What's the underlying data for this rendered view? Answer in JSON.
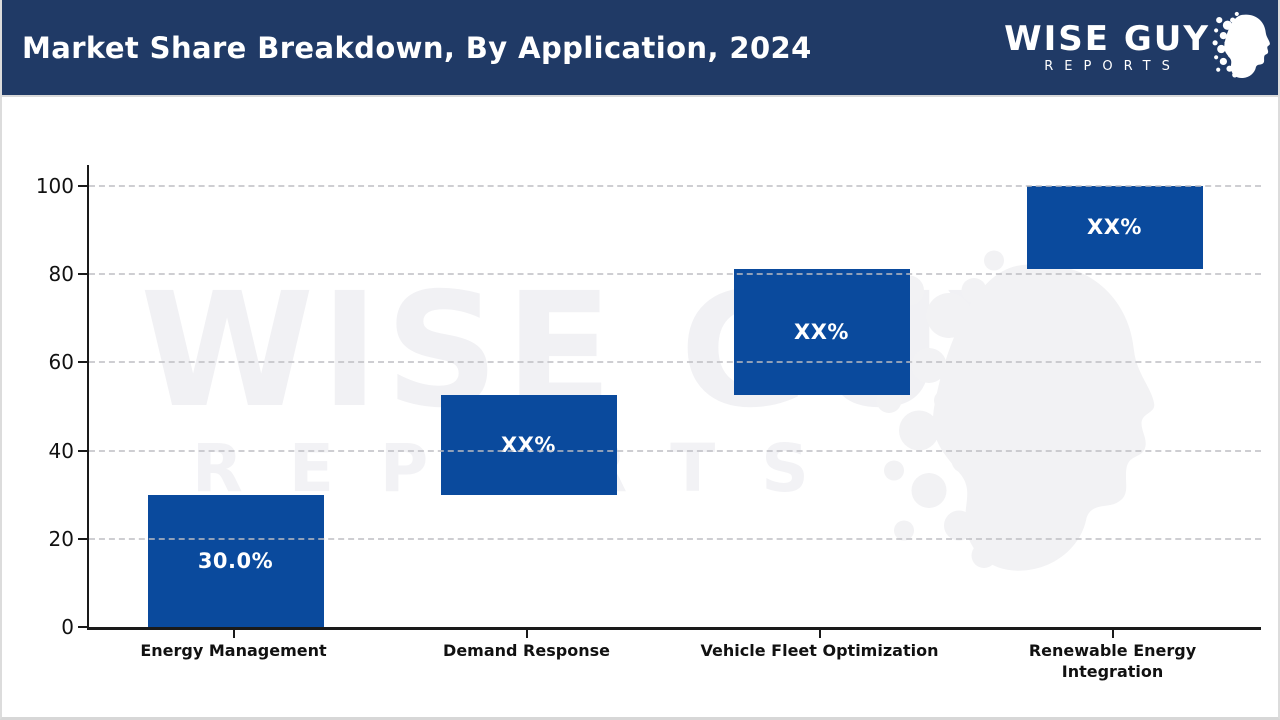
{
  "header": {
    "title": "Market Share Breakdown, By Application, 2024",
    "bg_color": "#203a66",
    "logo": {
      "line1": "WISE GUY",
      "line2": "REPORTS"
    }
  },
  "watermark": {
    "line1": "WISE GUY",
    "line2": "REPORTS"
  },
  "chart_data": {
    "type": "bar",
    "subtype": "waterfall",
    "title": "Market Share Breakdown, By Application, 2024",
    "xlabel": "",
    "ylabel": "",
    "ylim": [
      0,
      105
    ],
    "y_ticks": [
      0,
      20,
      40,
      60,
      80,
      100
    ],
    "grid": "horizontal-dashed",
    "legend": "none",
    "bar_color": "#0a4a9d",
    "categories": [
      "Energy Management",
      "Demand Response",
      "Vehicle Fleet Optimization",
      "Renewable Energy Integration"
    ],
    "segments": [
      {
        "category": "Energy Management",
        "start": 0,
        "end": 30,
        "label": "30.0%"
      },
      {
        "category": "Demand Response",
        "start": 30,
        "end": 52.5,
        "label": "XX%"
      },
      {
        "category": "Vehicle Fleet Optimization",
        "start": 52.5,
        "end": 81.25,
        "label": "XX%"
      },
      {
        "category": "Renewable Energy Integration",
        "start": 81.25,
        "end": 100,
        "label": "XX%"
      }
    ]
  }
}
